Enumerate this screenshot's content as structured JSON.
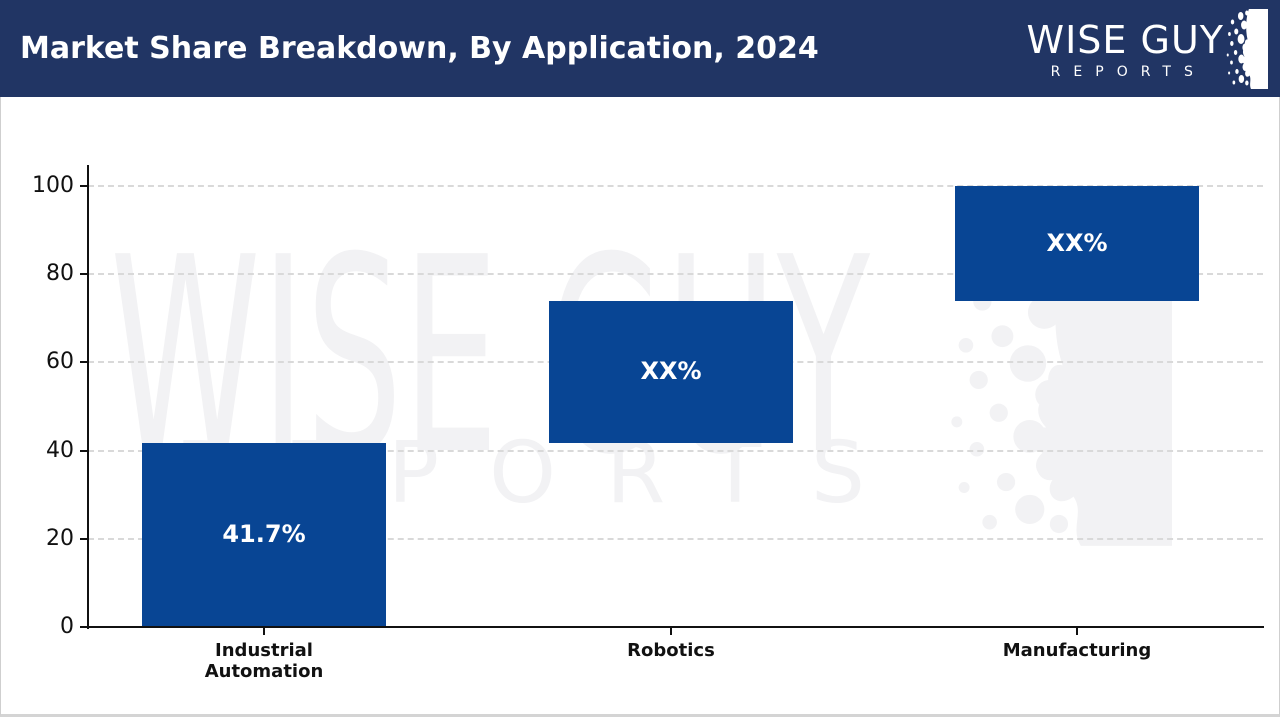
{
  "header": {
    "title": "Market Share Breakdown, By Application, 2024",
    "logo": {
      "name": "WISE GUY",
      "tagline": "REPORTS"
    }
  },
  "watermark": {
    "name": "WISE GUY",
    "tagline": "REPORTS"
  },
  "chart_data": {
    "type": "bar",
    "subtype": "waterfall-floating-bars",
    "title": "Market Share Breakdown, By Application, 2024",
    "categories": [
      "Industrial Automation",
      "Robotics",
      "Manufacturing"
    ],
    "bars": [
      {
        "category": "Industrial Automation",
        "start": 0,
        "end": 41.7,
        "label": "41.7%"
      },
      {
        "category": "Robotics",
        "start": 41.7,
        "end": 73.9,
        "label": "XX%"
      },
      {
        "category": "Manufacturing",
        "start": 73.9,
        "end": 100,
        "label": "XX%"
      }
    ],
    "xlabel": "",
    "ylabel": "",
    "ylim": [
      0,
      100
    ],
    "yticks": [
      0,
      20,
      40,
      60,
      80,
      100
    ],
    "grid": "horizontal-dashed",
    "legend": "none",
    "bar_color": "#084594"
  },
  "colors": {
    "header_bg": "#213564",
    "bar": "#084594",
    "bar_label": "#ffffff",
    "gridline": "#d9d9d9",
    "axis": "#111111",
    "watermark": "#f2f2f4",
    "frame_border": "#cfcfcf"
  }
}
